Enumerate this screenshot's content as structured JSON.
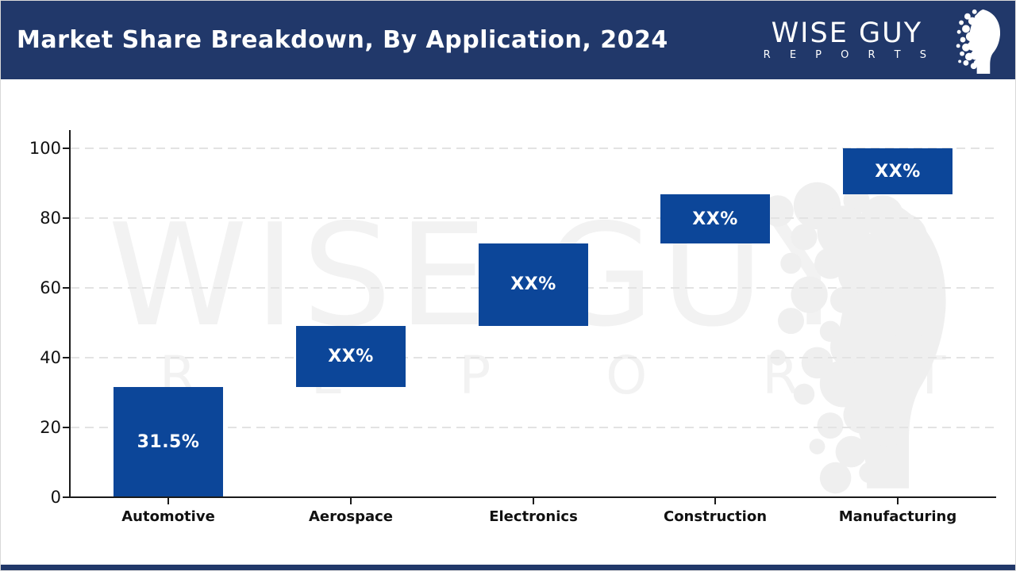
{
  "header": {
    "title": "Market Share Breakdown, By Application, 2024",
    "bg_color": "#21386a",
    "logo": {
      "line1": "WISE GUY",
      "line2": "R E P O R T S"
    }
  },
  "watermark": {
    "line1": "WISE GUY",
    "line2": "R E P O R T S"
  },
  "chart_data": {
    "type": "bar",
    "subtype": "waterfall",
    "title": "Market Share Breakdown, By Application, 2024",
    "xlabel": "",
    "ylabel": "",
    "categories": [
      "Automotive",
      "Aerospace",
      "Electronics",
      "Construction",
      "Manufacturing"
    ],
    "segments": [
      {
        "category": "Automotive",
        "start": 0,
        "end": 31.5,
        "value_label": "31.5%"
      },
      {
        "category": "Aerospace",
        "start": 31.5,
        "end": 49.2,
        "value_label": "XX%"
      },
      {
        "category": "Electronics",
        "start": 49.2,
        "end": 72.7,
        "value_label": "XX%"
      },
      {
        "category": "Construction",
        "start": 72.7,
        "end": 86.8,
        "value_label": "XX%"
      },
      {
        "category": "Manufacturing",
        "start": 86.8,
        "end": 100,
        "value_label": "XX%"
      }
    ],
    "y_ticks": [
      0,
      20,
      40,
      60,
      80,
      100
    ],
    "ylim": [
      0,
      105
    ],
    "grid": "horizontal dashed",
    "legend": "none",
    "bar_color": "#0c4699",
    "grid_color": "#e3e3e3",
    "axis_color": "#1a1a1a"
  },
  "footer": {
    "bg_color": "#21386a"
  }
}
